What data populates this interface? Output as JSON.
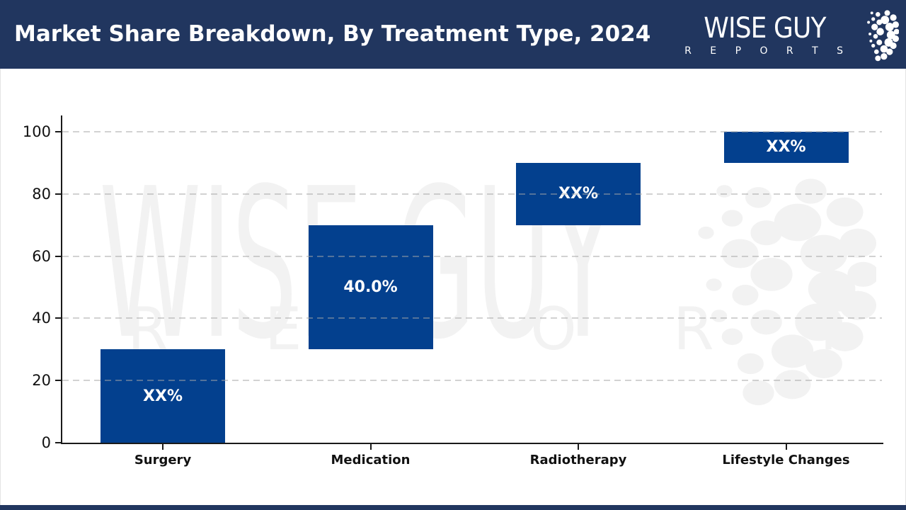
{
  "header": {
    "title": "Market Share Breakdown, By Treatment Type, 2024",
    "logo": {
      "line1": "WISE GUY",
      "line2": "R E P O R T S"
    }
  },
  "watermark": {
    "line1": "WISE GUY",
    "line2": "R E P O R T S"
  },
  "chart_data": {
    "type": "bar",
    "subtype": "waterfall",
    "title": "Market Share Breakdown, By Treatment Type, 2024",
    "categories": [
      "Surgery",
      "Medication",
      "Radiotherapy",
      "Lifestyle Changes"
    ],
    "series": [
      {
        "name": "Market Share",
        "starts": [
          0,
          30,
          70,
          90
        ],
        "ends": [
          30,
          70,
          90,
          100
        ],
        "values": [
          30,
          40,
          20,
          10
        ]
      }
    ],
    "bar_labels": [
      "XX%",
      "40.0%",
      "XX%",
      "XX%"
    ],
    "xlabel": "",
    "ylabel": "",
    "yticks": [
      0,
      20,
      40,
      60,
      80,
      100
    ],
    "ylim": [
      0,
      105
    ],
    "grid": "horizontal-dashed",
    "legend": "none"
  },
  "colors": {
    "header_bg": "#21365f",
    "footer_bg": "#21365f",
    "bar": "#03408e",
    "bar_label": "#ffffff",
    "axis": "#1a1a1a",
    "gridline": "#d4d4d4",
    "watermark": "#f2f2f2"
  }
}
